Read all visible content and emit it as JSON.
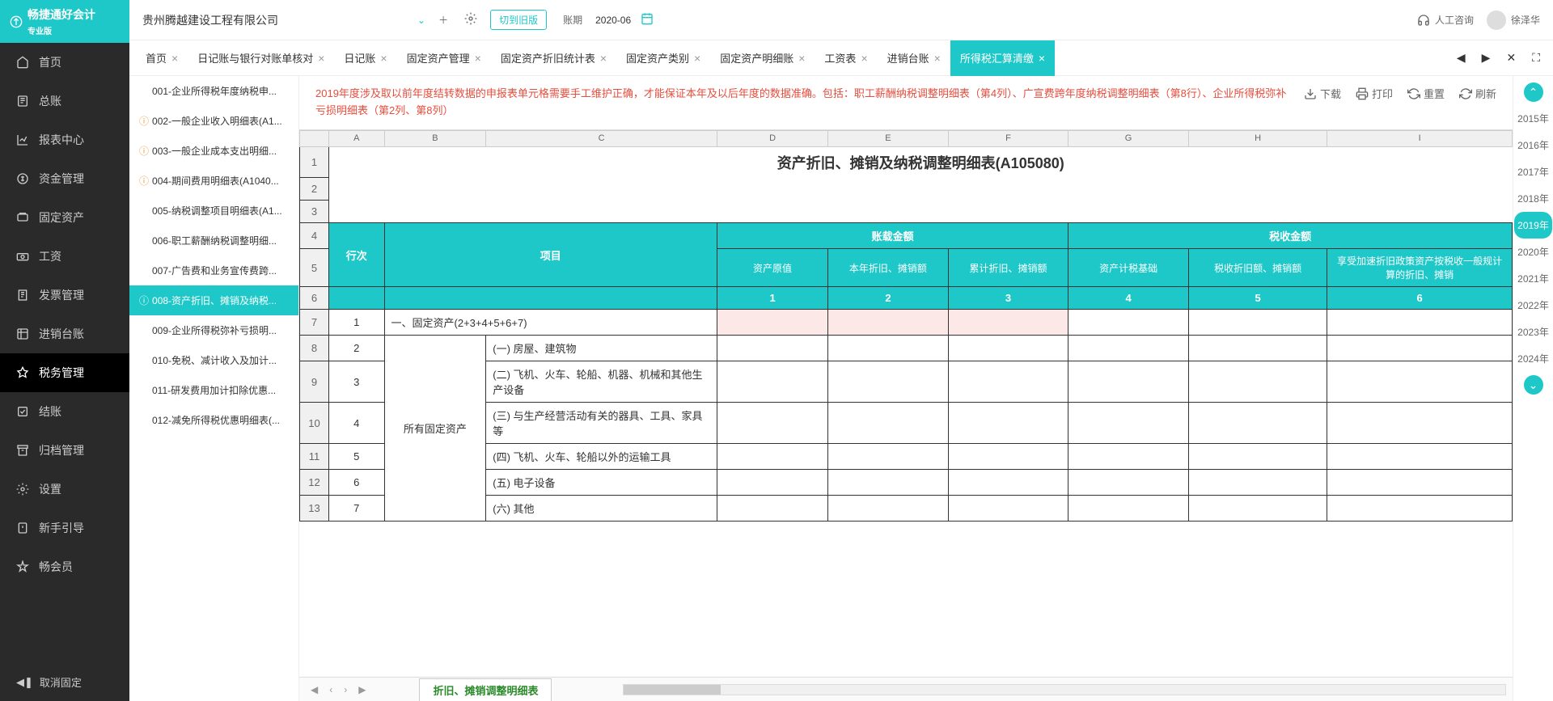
{
  "brand": {
    "name": "畅捷通好会计",
    "sub": "专业版"
  },
  "nav": [
    {
      "label": "首页",
      "icon": "home"
    },
    {
      "label": "总账",
      "icon": "ledger"
    },
    {
      "label": "报表中心",
      "icon": "chart"
    },
    {
      "label": "资金管理",
      "icon": "money"
    },
    {
      "label": "固定资产",
      "icon": "asset"
    },
    {
      "label": "工资",
      "icon": "salary"
    },
    {
      "label": "发票管理",
      "icon": "invoice"
    },
    {
      "label": "进销台账",
      "icon": "stock"
    },
    {
      "label": "税务管理",
      "icon": "tax",
      "active": true
    },
    {
      "label": "结账",
      "icon": "close"
    },
    {
      "label": "归档管理",
      "icon": "archive"
    },
    {
      "label": "设置",
      "icon": "gear"
    },
    {
      "label": "新手引导",
      "icon": "guide"
    },
    {
      "label": "畅会员",
      "icon": "vip"
    }
  ],
  "sidebar_footer": "取消固定",
  "topbar": {
    "company": "贵州腾越建设工程有限公司",
    "old_version": "切到旧版",
    "period_label": "账期",
    "period_value": "2020-06",
    "support": "人工咨询",
    "user": "徐泽华"
  },
  "tabs": [
    {
      "label": "首页",
      "closable": true
    },
    {
      "label": "日记账与银行对账单核对",
      "closable": true
    },
    {
      "label": "日记账",
      "closable": true
    },
    {
      "label": "固定资产管理",
      "closable": true
    },
    {
      "label": "固定资产折旧统计表",
      "closable": true
    },
    {
      "label": "固定资产类别",
      "closable": true
    },
    {
      "label": "固定资产明细账",
      "closable": true
    },
    {
      "label": "工资表",
      "closable": true
    },
    {
      "label": "进销台账",
      "closable": true
    },
    {
      "label": "所得税汇算清缴",
      "closable": true,
      "active": true
    }
  ],
  "sublist": [
    {
      "label": "001-企业所得税年度纳税申...",
      "q": false
    },
    {
      "label": "002-一般企业收入明细表(A1...",
      "q": true
    },
    {
      "label": "003-一般企业成本支出明细...",
      "q": true
    },
    {
      "label": "004-期间费用明细表(A1040...",
      "q": true
    },
    {
      "label": "005-纳税调整项目明细表(A1...",
      "q": false
    },
    {
      "label": "006-职工薪酬纳税调整明细...",
      "q": false
    },
    {
      "label": "007-广告费和业务宣传费跨...",
      "q": false
    },
    {
      "label": "008-资产折旧、摊销及纳税...",
      "q": true,
      "active": true
    },
    {
      "label": "009-企业所得税弥补亏损明...",
      "q": false
    },
    {
      "label": "010-免税、减计收入及加计...",
      "q": false
    },
    {
      "label": "011-研发费用加计扣除优惠...",
      "q": false
    },
    {
      "label": "012-减免所得税优惠明细表(...",
      "q": false
    }
  ],
  "notice": "2019年度涉及取以前年度结转数据的申报表单元格需要手工维护正确，才能保证本年及以后年度的数据准确。包括：职工薪酬纳税调整明细表（第4列）、广宣费跨年度纳税调整明细表（第8行）、企业所得税弥补亏损明细表（第2列、第8列）",
  "actions": {
    "download": "下载",
    "print": "打印",
    "reset": "重置",
    "refresh": "刷新"
  },
  "sheet": {
    "cols": [
      "A",
      "B",
      "C",
      "D",
      "E",
      "F",
      "G",
      "H",
      "I"
    ],
    "title": "资产折旧、摊销及纳税调整明细表(A105080)",
    "hdr_row": "行次",
    "hdr_item": "项目",
    "hdr_book": "账载金额",
    "hdr_tax": "税收金额",
    "sub_hdrs": [
      "资产原值",
      "本年折旧、摊销额",
      "累计折旧、摊销额",
      "资产计税基础",
      "税收折旧额、摊销额",
      "享受加速折旧政策资产按税收一般规计算的折旧、摊销"
    ],
    "nums": [
      "1",
      "2",
      "3",
      "4",
      "5",
      "6"
    ],
    "rows": [
      {
        "n": "1",
        "item": "一、固定资产(2+3+4+5+6+7)",
        "span": true,
        "pink": true
      },
      {
        "n": "2",
        "item": "(一) 房屋、建筑物"
      },
      {
        "n": "3",
        "item": "(二) 飞机、火车、轮船、机器、机械和其他生产设备"
      },
      {
        "n": "4",
        "item": "(三) 与生产经营活动有关的器具、工具、家具等"
      },
      {
        "n": "5",
        "item": "(四) 飞机、火车、轮船以外的运输工具"
      },
      {
        "n": "6",
        "item": "(五) 电子设备"
      },
      {
        "n": "7",
        "item": "(六) 其他"
      }
    ],
    "group_label": "所有固定资产",
    "tab_name": "折旧、摊销调整明细表"
  },
  "years": [
    "2015年",
    "2016年",
    "2017年",
    "2018年",
    "2019年",
    "2020年",
    "2021年",
    "2022年",
    "2023年",
    "2024年"
  ],
  "year_active": 4,
  "colors": {
    "primary": "#1ec8c8",
    "danger": "#e74c3c",
    "pink": "#fde8e8"
  }
}
